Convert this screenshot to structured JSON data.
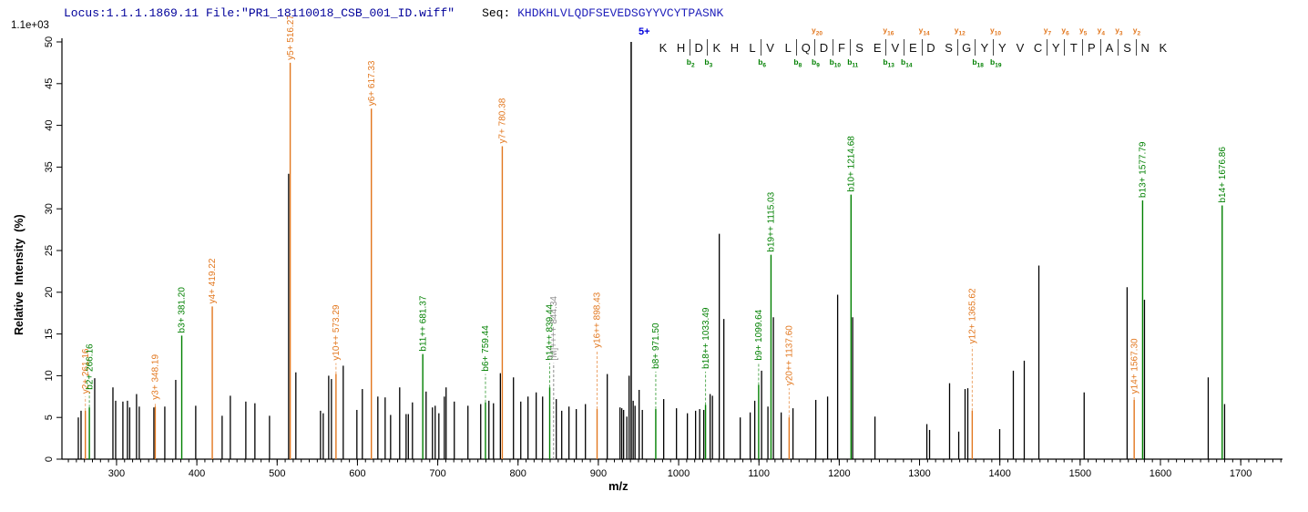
{
  "header": {
    "locus_file": "Locus:1.1.1.1869.11 File:\"PR1_18110018_CSB_001_ID.wiff\"",
    "seq_label": "Seq:",
    "seq_value": "KHDKHLVLQDFSEVEDSGYYVCYTPASNK"
  },
  "plot": {
    "y_scale_note": "1.1e+03",
    "y_axis_label": "Relative  Intensity  (%)",
    "x_axis_label": "m/z",
    "precursor_charge": "5+"
  },
  "colors": {
    "y_ion": "#e2771e",
    "b_ion": "#008000",
    "m_label": "#8c8c8c",
    "peak": "#000000",
    "charge_label": "#0000dd",
    "header_text": "#00009a",
    "sequence_text": "#2222bb"
  },
  "sequence_map": {
    "residues": "KHDKHLVLQDFSEVEDSGYYVCYTPASNK",
    "boundaries": [
      2,
      3,
      6,
      8,
      9,
      10,
      11,
      13,
      14,
      15,
      17,
      18,
      19,
      22,
      23,
      24,
      25,
      26,
      27
    ],
    "y_ions": [
      {
        "n": 20,
        "after": 9
      },
      {
        "n": 16,
        "after": 13
      },
      {
        "n": 14,
        "after": 15
      },
      {
        "n": 12,
        "after": 17
      },
      {
        "n": 10,
        "after": 19
      },
      {
        "n": 7,
        "after": 22
      },
      {
        "n": 6,
        "after": 23
      },
      {
        "n": 5,
        "after": 24
      },
      {
        "n": 4,
        "after": 25
      },
      {
        "n": 3,
        "after": 26
      },
      {
        "n": 2,
        "after": 27
      }
    ],
    "b_ions": [
      {
        "n": 2,
        "after": 2
      },
      {
        "n": 3,
        "after": 3
      },
      {
        "n": 6,
        "after": 6
      },
      {
        "n": 8,
        "after": 8
      },
      {
        "n": 9,
        "after": 9
      },
      {
        "n": 10,
        "after": 10
      },
      {
        "n": 11,
        "after": 11
      },
      {
        "n": 13,
        "after": 13
      },
      {
        "n": 14,
        "after": 14
      },
      {
        "n": 18,
        "after": 18
      },
      {
        "n": 19,
        "after": 19
      }
    ]
  },
  "chart_data": {
    "type": "bar",
    "subtype": "ms2-spectrum",
    "title": "",
    "xlabel": "m/z",
    "ylabel": "Relative Intensity (%)",
    "x_range": [
      232,
      1752
    ],
    "y_range": [
      0,
      50
    ],
    "x_ticks": [
      300,
      400,
      500,
      600,
      700,
      800,
      900,
      1000,
      1100,
      1200,
      1300,
      1400,
      1500,
      1600,
      1700
    ],
    "x_minor_step": 10,
    "y_ticks": [
      0,
      5,
      10,
      15,
      20,
      25,
      30,
      35,
      40,
      45,
      50
    ],
    "grid": false,
    "legend": "none",
    "precursor_peak": {
      "mz": 940.9,
      "intensity": 50.0,
      "charge_label": "5+"
    },
    "annotated_peaks": [
      {
        "label": "y2+ 261.16",
        "mz": 261.16,
        "intensity": 5.8,
        "label_from": 7.5,
        "type": "y"
      },
      {
        "label": "b2+ 266.16",
        "mz": 266.16,
        "intensity": 6.2,
        "label_from": 8.0,
        "type": "b"
      },
      {
        "label": "y3+ 348.19",
        "mz": 348.19,
        "intensity": 6.3,
        "label_from": 6.8,
        "type": "y"
      },
      {
        "label": "b3+ 381.20",
        "mz": 381.2,
        "intensity": 14.8,
        "type": "b"
      },
      {
        "label": "y4+ 419.22",
        "mz": 419.22,
        "intensity": 18.3,
        "type": "y"
      },
      {
        "label": "y5+ 516.27",
        "mz": 516.27,
        "intensity": 47.5,
        "type": "y"
      },
      {
        "label": "y10++ 573.29",
        "mz": 573.29,
        "intensity": 10.2,
        "label_from": 11.5,
        "type": "y"
      },
      {
        "label": "y6+ 617.33",
        "mz": 617.33,
        "intensity": 42.0,
        "type": "y"
      },
      {
        "label": "b11++ 681.37",
        "mz": 681.37,
        "intensity": 12.6,
        "type": "b"
      },
      {
        "label": "b6+ 759.44",
        "mz": 759.44,
        "intensity": 6.8,
        "label_from": 10.2,
        "type": "b"
      },
      {
        "label": "y7+ 780.38",
        "mz": 780.38,
        "intensity": 37.5,
        "type": "y"
      },
      {
        "label": "b14++ 839.44",
        "mz": 839.44,
        "intensity": 8.6,
        "label_from": 11.5,
        "type": "b"
      },
      {
        "label": "[M]++++ 844.34",
        "mz": 844.34,
        "intensity": 0,
        "label_from": 11.5,
        "type": "M",
        "dashed_full": true
      },
      {
        "label": "y16++ 898.43",
        "mz": 898.43,
        "intensity": 6.0,
        "label_from": 13.0,
        "type": "y"
      },
      {
        "label": "b8+ 971.50",
        "mz": 971.5,
        "intensity": 6.0,
        "label_from": 10.5,
        "type": "b"
      },
      {
        "label": "b18++ 1033.49",
        "mz": 1033.49,
        "intensity": 6.5,
        "label_from": 10.5,
        "type": "b"
      },
      {
        "label": "b9+ 1099.64",
        "mz": 1099.64,
        "intensity": 8.9,
        "label_from": 11.5,
        "type": "b"
      },
      {
        "label": "b19++ 1115.03",
        "mz": 1115.03,
        "intensity": 24.5,
        "type": "b"
      },
      {
        "label": "y20++ 1137.60",
        "mz": 1137.6,
        "intensity": 5.0,
        "label_from": 8.5,
        "type": "y"
      },
      {
        "label": "b10+ 1214.68",
        "mz": 1214.68,
        "intensity": 31.7,
        "type": "b"
      },
      {
        "label": "y12+ 1365.62",
        "mz": 1365.62,
        "intensity": 5.8,
        "label_from": 13.5,
        "type": "y"
      },
      {
        "label": "y14+ 1567.30",
        "mz": 1567.3,
        "intensity": 7.1,
        "label_from": 7.5,
        "type": "y"
      },
      {
        "label": "b13+ 1577.79",
        "mz": 1577.79,
        "intensity": 31.0,
        "type": "b"
      },
      {
        "label": "b14+ 1676.86",
        "mz": 1676.86,
        "intensity": 30.4,
        "type": "b"
      }
    ],
    "unassigned_peaks": [
      [
        252.4,
        5.0
      ],
      [
        255.8,
        5.8
      ],
      [
        272.8,
        9.7
      ],
      [
        295.5,
        8.6
      ],
      [
        298.9,
        7.0
      ],
      [
        307.9,
        6.9
      ],
      [
        313.6,
        7.0
      ],
      [
        316.4,
        6.2
      ],
      [
        324.9,
        7.8
      ],
      [
        328.3,
        6.3
      ],
      [
        346.5,
        6.2
      ],
      [
        360.1,
        6.3
      ],
      [
        373.7,
        9.5
      ],
      [
        398.6,
        6.4
      ],
      [
        431.5,
        5.2
      ],
      [
        441.7,
        7.6
      ],
      [
        461.0,
        6.9
      ],
      [
        472.3,
        6.7
      ],
      [
        490.5,
        5.2
      ],
      [
        514.3,
        34.2
      ],
      [
        523.3,
        10.4
      ],
      [
        554.0,
        5.8
      ],
      [
        557.4,
        5.5
      ],
      [
        564.2,
        10.0
      ],
      [
        567.6,
        9.6
      ],
      [
        582.3,
        11.2
      ],
      [
        599.3,
        5.9
      ],
      [
        606.1,
        8.4
      ],
      [
        625.4,
        7.5
      ],
      [
        634.5,
        7.4
      ],
      [
        641.3,
        5.3
      ],
      [
        652.6,
        8.6
      ],
      [
        660.6,
        5.4
      ],
      [
        663.4,
        5.4
      ],
      [
        668.5,
        6.8
      ],
      [
        685.5,
        8.1
      ],
      [
        693.4,
        6.2
      ],
      [
        696.8,
        6.4
      ],
      [
        701.4,
        5.5
      ],
      [
        708.2,
        7.5
      ],
      [
        710.4,
        8.6
      ],
      [
        720.6,
        6.9
      ],
      [
        737.6,
        6.4
      ],
      [
        753.5,
        6.6
      ],
      [
        763.7,
        7.0
      ],
      [
        769.4,
        6.7
      ],
      [
        778.0,
        10.3
      ],
      [
        794.3,
        9.8
      ],
      [
        803.4,
        6.9
      ],
      [
        812.4,
        7.5
      ],
      [
        822.6,
        8.0
      ],
      [
        830.6,
        7.5
      ],
      [
        847.6,
        7.2
      ],
      [
        854.4,
        5.8
      ],
      [
        863.4,
        6.3
      ],
      [
        872.5,
        6.0
      ],
      [
        883.9,
        6.6
      ],
      [
        911.1,
        10.2
      ],
      [
        927.0,
        6.2
      ],
      [
        929.2,
        6.1
      ],
      [
        931.5,
        5.9
      ],
      [
        935.5,
        5.1
      ],
      [
        938.3,
        10.0
      ],
      [
        943.4,
        7.0
      ],
      [
        945.7,
        6.4
      ],
      [
        950.8,
        8.3
      ],
      [
        954.8,
        5.9
      ],
      [
        981.4,
        7.2
      ],
      [
        997.3,
        6.1
      ],
      [
        1010.9,
        5.5
      ],
      [
        1021.1,
        5.8
      ],
      [
        1026.2,
        6.0
      ],
      [
        1031.3,
        5.9
      ],
      [
        1039.2,
        7.8
      ],
      [
        1042.1,
        7.6
      ],
      [
        1050.6,
        27.0
      ],
      [
        1056.3,
        16.8
      ],
      [
        1076.7,
        5.0
      ],
      [
        1089.1,
        5.6
      ],
      [
        1094.8,
        7.0
      ],
      [
        1103.3,
        10.6
      ],
      [
        1111.2,
        6.3
      ],
      [
        1118.0,
        17.0
      ],
      [
        1127.7,
        5.6
      ],
      [
        1142.4,
        6.1
      ],
      [
        1170.8,
        7.1
      ],
      [
        1185.5,
        7.5
      ],
      [
        1198.0,
        19.7
      ],
      [
        1216.7,
        17.0
      ],
      [
        1244.5,
        5.1
      ],
      [
        1309.1,
        4.2
      ],
      [
        1312.5,
        3.5
      ],
      [
        1337.4,
        9.1
      ],
      [
        1348.8,
        3.3
      ],
      [
        1356.7,
        8.4
      ],
      [
        1360.1,
        8.5
      ],
      [
        1399.8,
        3.6
      ],
      [
        1416.8,
        10.6
      ],
      [
        1430.4,
        11.8
      ],
      [
        1448.6,
        23.2
      ],
      [
        1505.0,
        8.0
      ],
      [
        1558.5,
        20.6
      ],
      [
        1580.1,
        19.1
      ],
      [
        1659.5,
        9.8
      ],
      [
        1679.9,
        6.6
      ]
    ]
  }
}
